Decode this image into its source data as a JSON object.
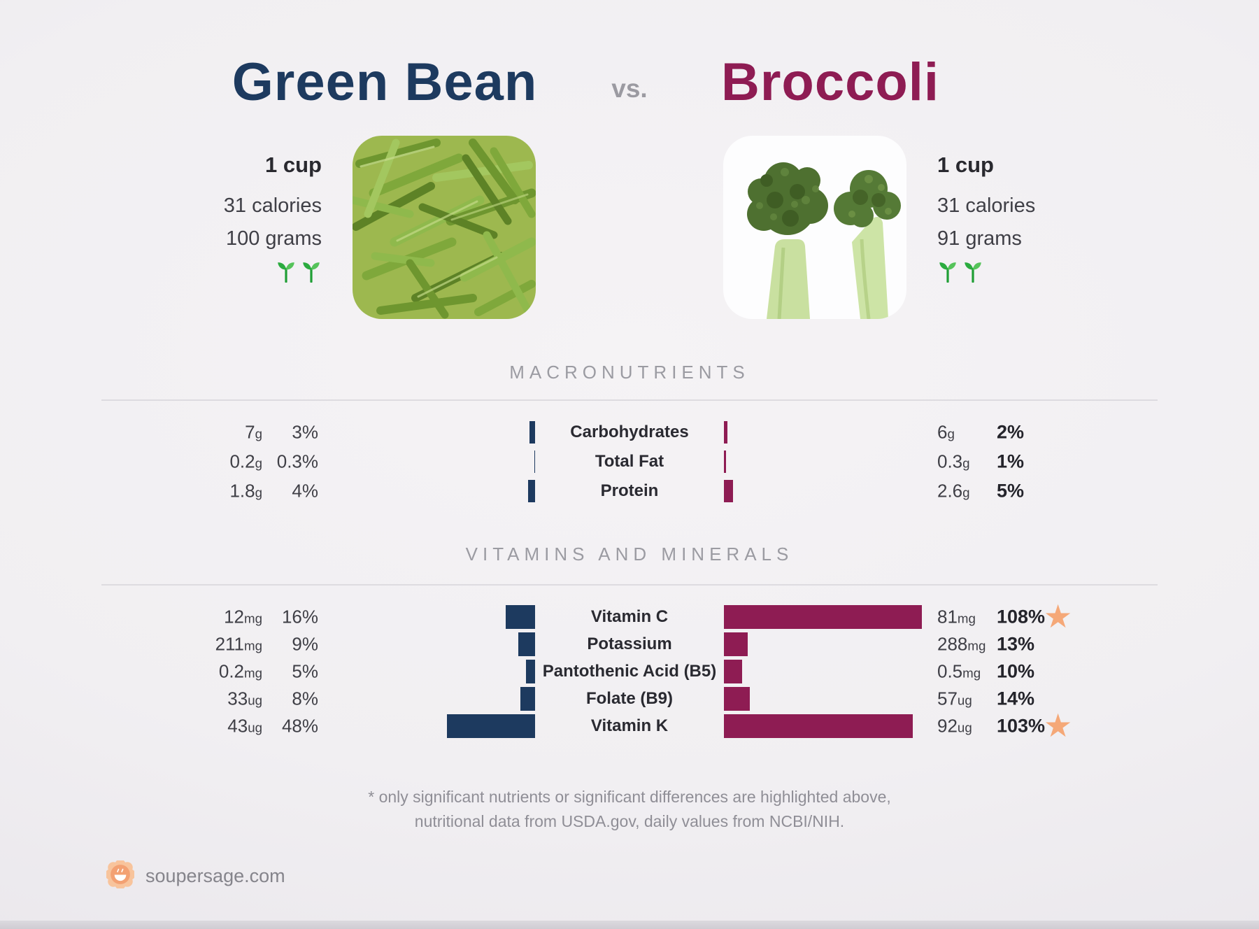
{
  "header": {
    "left_title": "Green Bean",
    "vs_label": "vs.",
    "right_title": "Broccoli"
  },
  "foods": {
    "left": {
      "name": "Green Bean",
      "serving": "1 cup",
      "calories": "31 calories",
      "weight": "100 grams"
    },
    "right": {
      "name": "Broccoli",
      "serving": "1 cup",
      "calories": "31 calories",
      "weight": "91 grams"
    }
  },
  "sections": [
    {
      "title": "MACRONUTRIENTS",
      "rows": [
        {
          "label": "Carbohydrates",
          "left": {
            "amount": "7",
            "unit": "g",
            "pct": 3,
            "pct_label": "3%"
          },
          "right": {
            "amount": "6",
            "unit": "g",
            "pct": 2,
            "pct_label": "2%"
          }
        },
        {
          "label": "Total Fat",
          "left": {
            "amount": "0.2",
            "unit": "g",
            "pct": 0.3,
            "pct_label": "0.3%"
          },
          "right": {
            "amount": "0.3",
            "unit": "g",
            "pct": 1,
            "pct_label": "1%"
          }
        },
        {
          "label": "Protein",
          "left": {
            "amount": "1.8",
            "unit": "g",
            "pct": 4,
            "pct_label": "4%"
          },
          "right": {
            "amount": "2.6",
            "unit": "g",
            "pct": 5,
            "pct_label": "5%"
          }
        }
      ]
    },
    {
      "title": "VITAMINS AND MINERALS",
      "rows": [
        {
          "label": "Vitamin C",
          "left": {
            "amount": "12",
            "unit": "mg",
            "pct": 16,
            "pct_label": "16%"
          },
          "right": {
            "amount": "81",
            "unit": "mg",
            "pct": 108,
            "pct_label": "108%",
            "star": true
          }
        },
        {
          "label": "Potassium",
          "left": {
            "amount": "211",
            "unit": "mg",
            "pct": 9,
            "pct_label": "9%"
          },
          "right": {
            "amount": "288",
            "unit": "mg",
            "pct": 13,
            "pct_label": "13%"
          }
        },
        {
          "label": "Pantothenic Acid (B5)",
          "left": {
            "amount": "0.2",
            "unit": "mg",
            "pct": 5,
            "pct_label": "5%"
          },
          "right": {
            "amount": "0.5",
            "unit": "mg",
            "pct": 10,
            "pct_label": "10%"
          }
        },
        {
          "label": "Folate (B9)",
          "left": {
            "amount": "33",
            "unit": "ug",
            "pct": 8,
            "pct_label": "8%"
          },
          "right": {
            "amount": "57",
            "unit": "ug",
            "pct": 14,
            "pct_label": "14%"
          }
        },
        {
          "label": "Vitamin K",
          "left": {
            "amount": "43",
            "unit": "ug",
            "pct": 48,
            "pct_label": "48%"
          },
          "right": {
            "amount": "92",
            "unit": "ug",
            "pct": 103,
            "pct_label": "103%",
            "star": true
          }
        }
      ]
    }
  ],
  "footnote": {
    "line1": "* only significant nutrients or significant differences are highlighted above,",
    "line2": "nutritional data from USDA.gov, daily values from NCBI/NIH."
  },
  "footer": {
    "site": "soupersage.com"
  },
  "icons": {
    "star_glyph": "★",
    "sprout": "seedling-icon",
    "logo": "soup-bowl-flower-badge"
  },
  "colors": {
    "green_bean": "#1d3a5f",
    "broccoli": "#8e1c53",
    "star": "#f5a878",
    "sprout_green": "#2bab3f",
    "heading_gray": "#9b9ba2",
    "logo_peach": "#f3a173"
  },
  "chart_data": [
    {
      "type": "bar",
      "title": "MACRONUTRIENTS",
      "orientation": "horizontal-diverging",
      "categories": [
        "Carbohydrates",
        "Total Fat",
        "Protein"
      ],
      "series": [
        {
          "name": "Green Bean",
          "serving": "1 cup (100 grams, 31 calories)",
          "amounts": [
            "7 g",
            "0.2 g",
            "1.8 g"
          ],
          "percent_daily_value": [
            3,
            0.3,
            4
          ]
        },
        {
          "name": "Broccoli",
          "serving": "1 cup (91 grams, 31 calories)",
          "amounts": [
            "6 g",
            "0.3 g",
            "2.6 g"
          ],
          "percent_daily_value": [
            2,
            1,
            5
          ]
        }
      ],
      "legend_position": "none",
      "grid": false
    },
    {
      "type": "bar",
      "title": "VITAMINS AND MINERALS",
      "orientation": "horizontal-diverging",
      "categories": [
        "Vitamin C",
        "Potassium",
        "Pantothenic Acid (B5)",
        "Folate (B9)",
        "Vitamin K"
      ],
      "series": [
        {
          "name": "Green Bean",
          "amounts": [
            "12 mg",
            "211 mg",
            "0.2 mg",
            "33 ug",
            "43 ug"
          ],
          "percent_daily_value": [
            16,
            9,
            5,
            8,
            48
          ]
        },
        {
          "name": "Broccoli",
          "amounts": [
            "81 mg",
            "288 mg",
            "0.5 mg",
            "57 ug",
            "92 ug"
          ],
          "percent_daily_value": [
            108,
            13,
            10,
            14,
            103
          ],
          "starred_categories": [
            "Vitamin C",
            "Vitamin K"
          ]
        }
      ],
      "legend_position": "none",
      "grid": false
    }
  ]
}
